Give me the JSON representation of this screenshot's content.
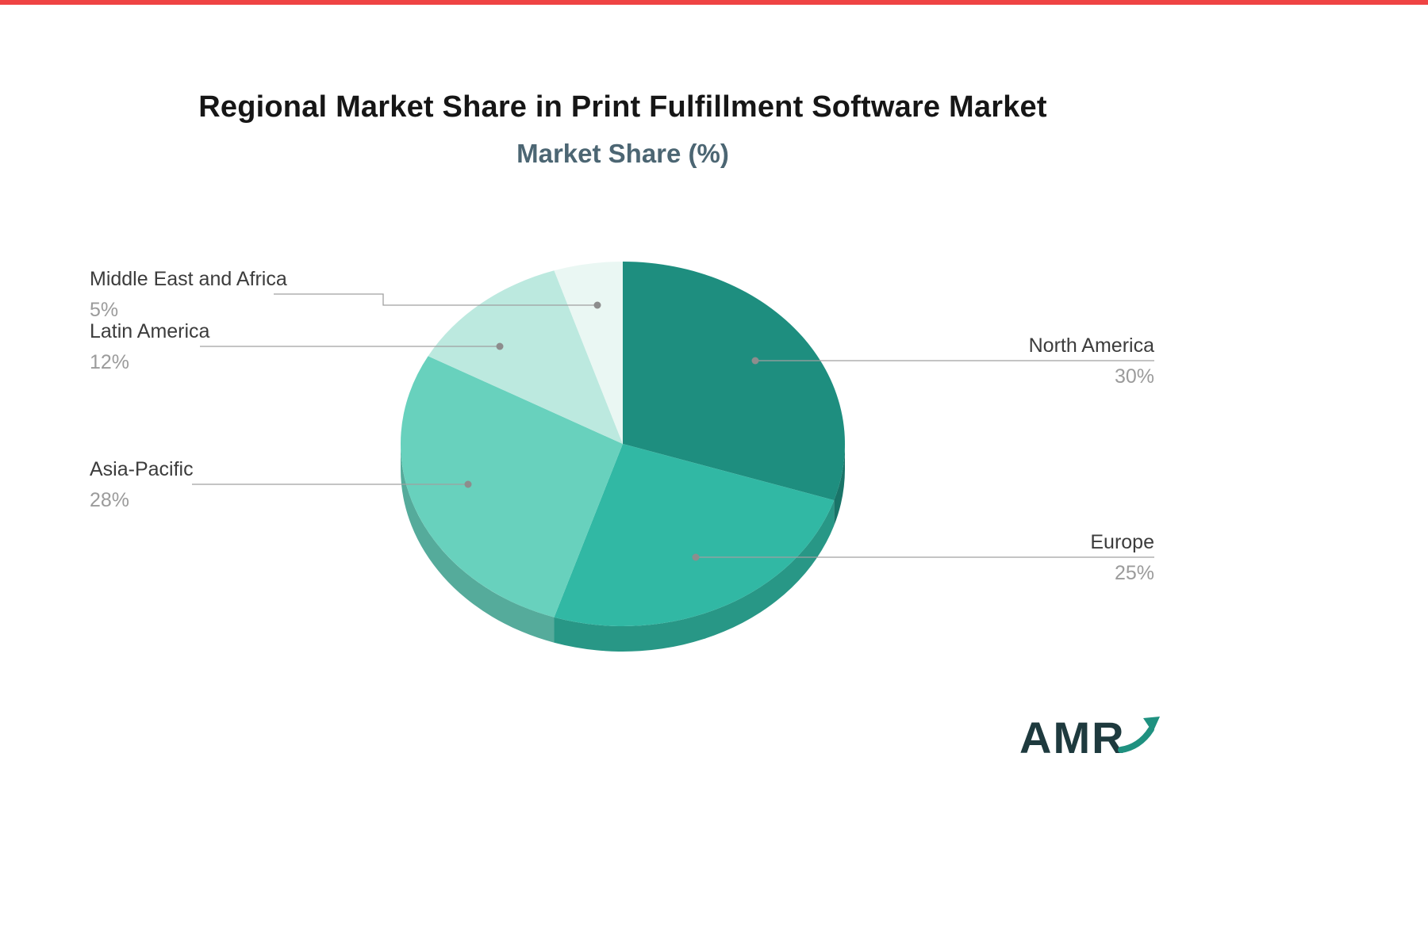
{
  "page": {
    "title": "Regional Market Share in Print Fulfillment Software Market",
    "subtitle": "Market Share (%)"
  },
  "chart_data": {
    "type": "pie",
    "title": "Regional Market Share in Print Fulfillment Software Market",
    "subtitle": "Market Share (%)",
    "unit": "%",
    "legend_position": "none",
    "style": "3d-pie",
    "categories": [
      "North America",
      "Europe",
      "Asia-Pacific",
      "Latin America",
      "Middle East and Africa"
    ],
    "values": [
      30,
      25,
      28,
      12,
      5
    ],
    "slices": [
      {
        "label": "North America",
        "value": 30,
        "pct_label": "30%",
        "color": "#1e8e7f",
        "side": "right"
      },
      {
        "label": "Europe",
        "value": 25,
        "pct_label": "25%",
        "color": "#31b8a4",
        "side": "right"
      },
      {
        "label": "Asia-Pacific",
        "value": 28,
        "pct_label": "28%",
        "color": "#68d1bd",
        "side": "left"
      },
      {
        "label": "Latin America",
        "value": 12,
        "pct_label": "12%",
        "color": "#bce9df",
        "side": "left"
      },
      {
        "label": "Middle East and Africa",
        "value": 5,
        "pct_label": "5%",
        "color": "#eaf7f3",
        "side": "left"
      }
    ]
  },
  "branding": {
    "logo_text": "AMR",
    "logo_color": "#1e3a3e",
    "arrow_color": "#1f9180"
  }
}
